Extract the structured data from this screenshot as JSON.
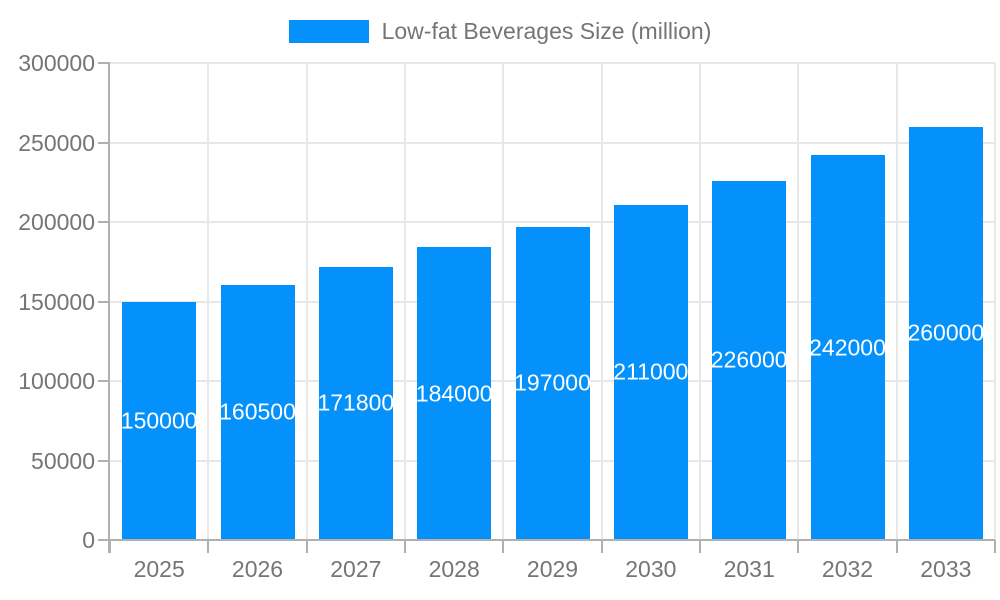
{
  "chart_data": {
    "type": "bar",
    "title": "Low-fat Beverages Size (million)",
    "legend": [
      "Low-fat Beverages Size (million)"
    ],
    "legend_position": "top-center",
    "categories": [
      "2025",
      "2026",
      "2027",
      "2028",
      "2029",
      "2030",
      "2031",
      "2032",
      "2033"
    ],
    "series": [
      {
        "name": "Low-fat Beverages Size (million)",
        "values": [
          150000,
          160500,
          171800,
          184000,
          197000,
          211000,
          226000,
          242000,
          260000
        ]
      }
    ],
    "bar_value_labels": [
      "150000",
      "160500",
      "171800",
      "184000",
      "197000",
      "211000",
      "226000",
      "242000",
      "260000"
    ],
    "xlabel": "",
    "ylabel": "",
    "ylim": [
      0,
      300000
    ],
    "y_ticks": [
      0,
      50000,
      100000,
      150000,
      200000,
      250000,
      300000
    ],
    "grid": "horizontal-and-vertical",
    "colors": {
      "bar": "#0591fb",
      "bar_label": "#ffffff",
      "axis": "#b0b0b0",
      "gridline": "#e7e7e7",
      "tick_label": "#757575",
      "legend_text": "#757575"
    }
  }
}
